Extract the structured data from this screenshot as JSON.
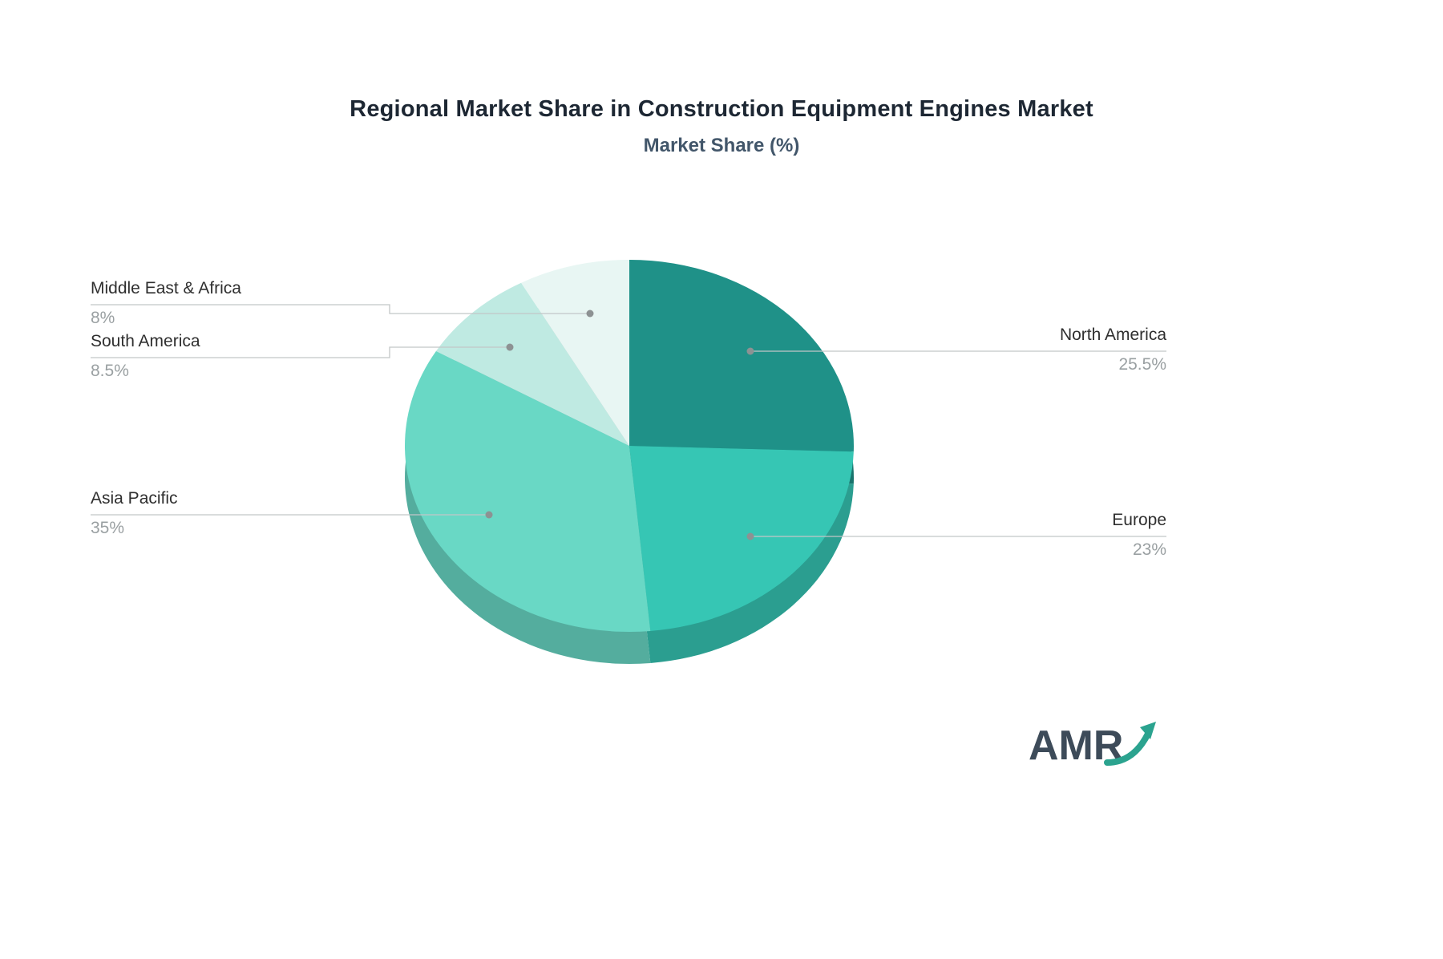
{
  "chart_data": {
    "type": "pie",
    "title": "Regional Market Share in Construction Equipment Engines Market",
    "subtitle": "Market Share (%)",
    "unit": "%",
    "direction": "clockwise",
    "start_angle_deg": 0,
    "legend_position": "none",
    "segments": [
      {
        "label": "North America",
        "value": 25.5,
        "display": "25.5%",
        "color": "#1f9188"
      },
      {
        "label": "Europe",
        "value": 23,
        "display": "23%",
        "color": "#36c6b4"
      },
      {
        "label": "Asia Pacific",
        "value": 35,
        "display": "35%",
        "color": "#69d8c5"
      },
      {
        "label": "South America",
        "value": 8.5,
        "display": "8.5%",
        "color": "#bfeae2"
      },
      {
        "label": "Middle East & Africa",
        "value": 8,
        "display": "8%",
        "color": "#e8f6f3"
      }
    ],
    "accent_colors": {
      "leader_line": "#c2c6c7",
      "leader_dot": "#8d9293",
      "value_text": "#9aa0a2",
      "label_text": "#2f2f2f"
    }
  },
  "logo": {
    "text": "AMR",
    "color": "#3d4b59",
    "arrow_color": "#2ba38f"
  }
}
